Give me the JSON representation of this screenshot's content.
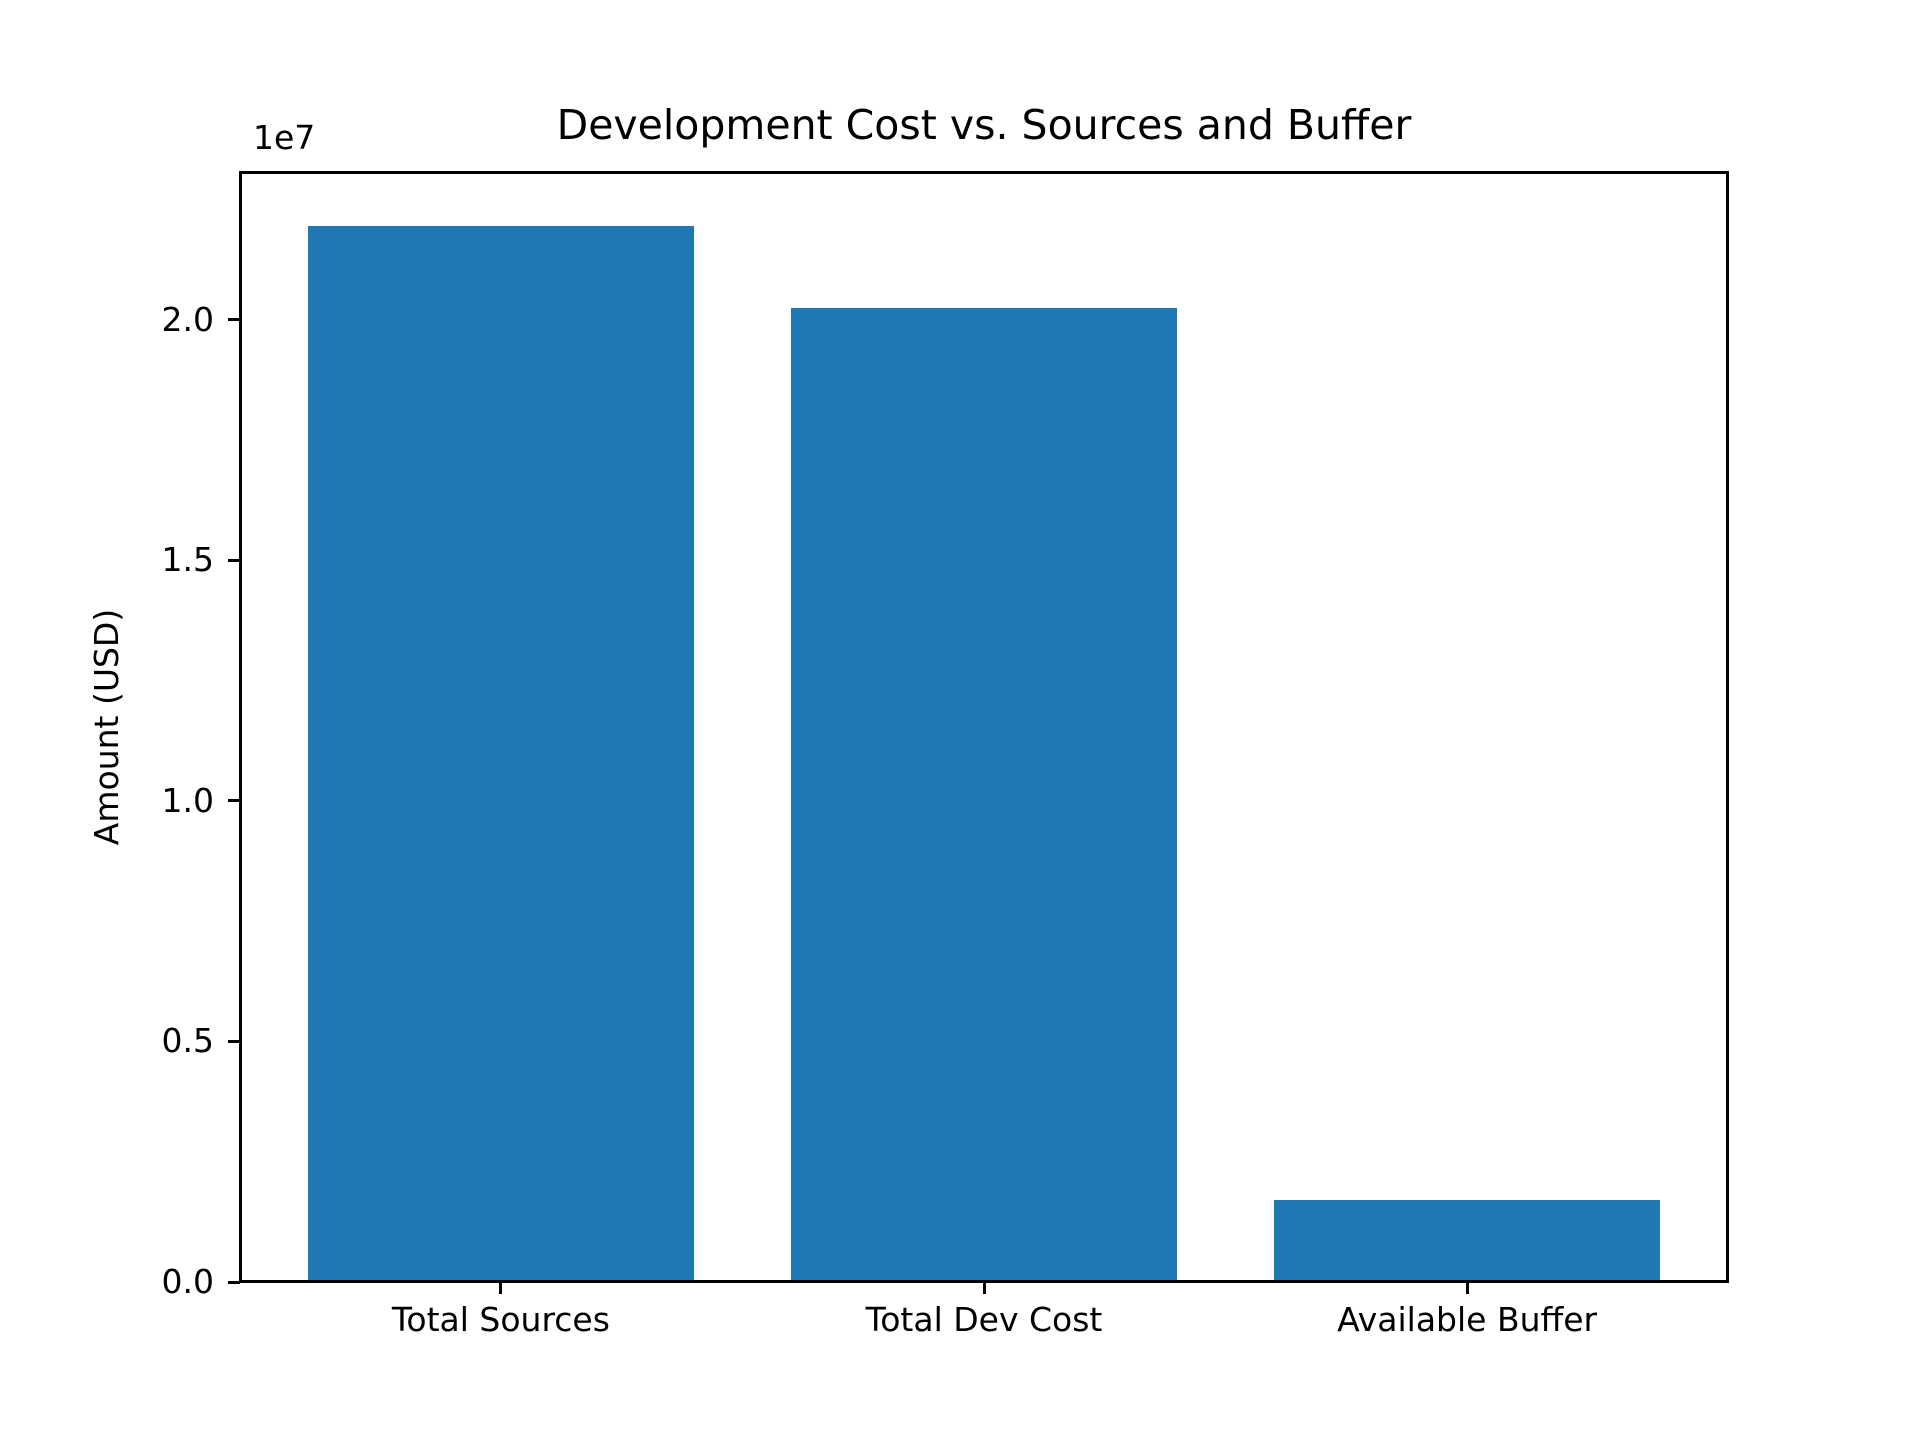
{
  "chart_data": {
    "type": "bar",
    "title": "Development Cost vs. Sources and Buffer",
    "ylabel": "Amount (USD)",
    "xlabel": "",
    "y_offset_text": "1e7",
    "categories": [
      "Total Sources",
      "Total Dev Cost",
      "Available Buffer"
    ],
    "values": [
      21950000,
      20250000,
      1700000
    ],
    "ylim": [
      0,
      23047500
    ],
    "yticks": {
      "values": [
        0,
        5000000,
        10000000,
        15000000,
        20000000
      ],
      "labels": [
        "0.0",
        "0.5",
        "1.0",
        "1.5",
        "2.0"
      ]
    },
    "xlim": [
      -0.54,
      2.54
    ],
    "bar_width": 0.8,
    "bar_color": "#1f77b4",
    "grid": false,
    "legend_position": "none",
    "background_color": "#ffffff",
    "spine_color": "#000000"
  }
}
